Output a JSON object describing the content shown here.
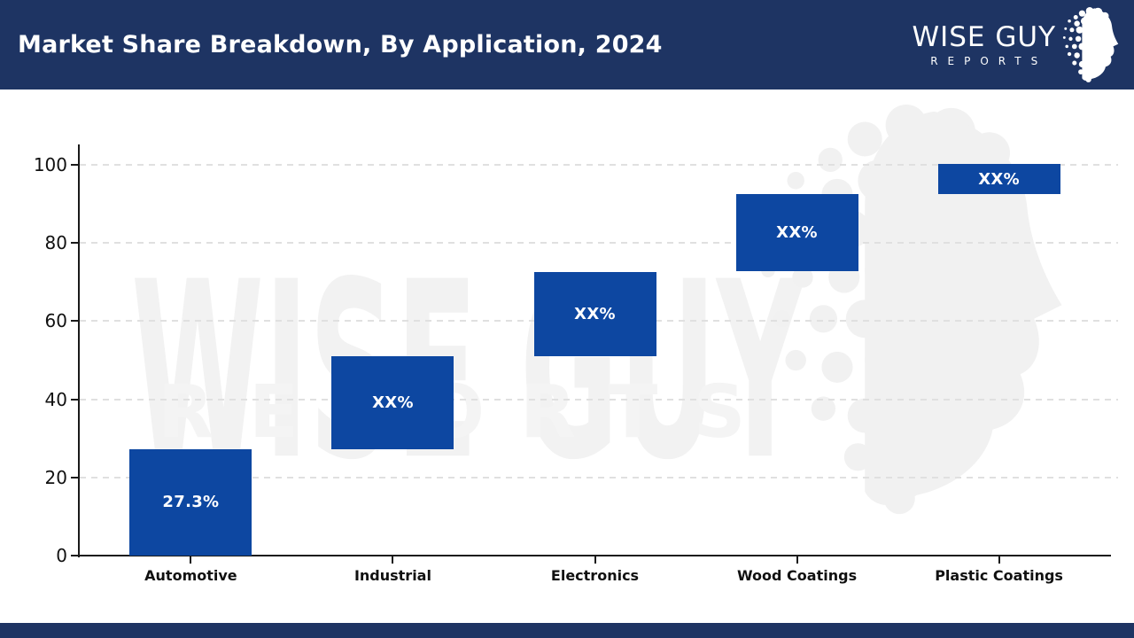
{
  "header": {
    "title": "Market Share Breakdown, By Application, 2024",
    "brand": {
      "name": "WISE GUY",
      "sub": "REPORTS"
    }
  },
  "watermark": {
    "line1": "WISE GUY",
    "line2": "REPORTS"
  },
  "colors": {
    "header_bg": "#1e3463",
    "bar": "#0d47a1",
    "gridline": "#e0e0e0",
    "axis": "#1a1a1a",
    "bar_label": "#ffffff",
    "watermark": "#f2f2f2"
  },
  "chart_data": {
    "type": "bar",
    "subtype": "waterfall",
    "title": "Market Share Breakdown, By Application, 2024",
    "xlabel": "",
    "ylabel": "",
    "ylim": [
      0,
      105
    ],
    "grid": "dashed-horizontal",
    "legend": "none",
    "categories": [
      "Automotive",
      "Industrial",
      "Electronics",
      "Wood Coatings",
      "Plastic Coatings"
    ],
    "yticks": [
      0,
      20,
      40,
      60,
      80,
      100
    ],
    "bars": [
      {
        "category": "Automotive",
        "start": 0,
        "end": 27.3,
        "label": "27.3%"
      },
      {
        "category": "Industrial",
        "start": 27.3,
        "end": 51.0,
        "label": "XX%"
      },
      {
        "category": "Electronics",
        "start": 51.0,
        "end": 72.6,
        "label": "XX%"
      },
      {
        "category": "Wood Coatings",
        "start": 72.8,
        "end": 92.5,
        "label": "XX%"
      },
      {
        "category": "Plastic Coatings",
        "start": 92.5,
        "end": 100.2,
        "label": "XX%"
      }
    ]
  }
}
